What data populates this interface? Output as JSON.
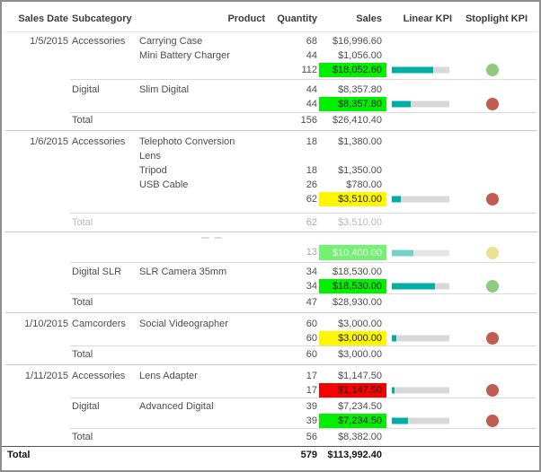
{
  "header": {
    "columns": [
      {
        "key": "date",
        "label": "Sales Date"
      },
      {
        "key": "subcategory",
        "label": "Subcategory"
      },
      {
        "key": "product",
        "label": "Product"
      },
      {
        "key": "quantity",
        "label": "Quantity"
      },
      {
        "key": "sales",
        "label": "Sales"
      },
      {
        "key": "linear_kpi",
        "label": "Linear KPI"
      },
      {
        "key": "stoplight_kpi",
        "label": "Stoplight KPI"
      }
    ]
  },
  "colors": {
    "cell_green": "#00f000",
    "cell_yellow": "#fff600",
    "cell_red": "#f80000",
    "cell_green_faded": "#72f172",
    "bar_fill": "#00aea4",
    "bar_fill_faded": "#74d0ca",
    "bar_track": "#d8d8d8",
    "bar_track_faded": "#e4e4e4",
    "dot_green": "#8fcb7d",
    "dot_red": "#c25b51",
    "dot_yellow": "#e8e093"
  },
  "rows": [
    {
      "type": "detail",
      "date": "1/5/2015",
      "subcategory": "Accessories",
      "product": "Carrying Case",
      "quantity": "68",
      "sales": "$16,996.60"
    },
    {
      "type": "detail",
      "product": "Mini Battery Charger",
      "quantity": "44",
      "sales": "$1,056.00"
    },
    {
      "type": "subtotal",
      "quantity": "112",
      "sales": "$18,052.60",
      "kpi": "green",
      "bar_pct": 72,
      "dot": "green"
    },
    {
      "type": "detail",
      "subcategory": "Digital",
      "product": "Slim Digital",
      "quantity": "44",
      "sales": "$8,357.80"
    },
    {
      "type": "subtotal",
      "quantity": "44",
      "sales": "$8,357.80",
      "kpi": "green",
      "bar_pct": 33,
      "dot": "red"
    },
    {
      "type": "total",
      "label": "Total",
      "quantity": "156",
      "sales": "$26,410.40"
    },
    {
      "type": "detail",
      "date": "1/6/2015",
      "subcategory": "Accessories",
      "product": "Telephoto Conversion Lens",
      "quantity": "18",
      "sales": "$1,380.00"
    },
    {
      "type": "detail",
      "product": "Tripod",
      "quantity": "18",
      "sales": "$1,350.00"
    },
    {
      "type": "detail",
      "product": "USB Cable",
      "quantity": "26",
      "sales": "$780.00"
    },
    {
      "type": "subtotal",
      "quantity": "62",
      "sales": "$3,510.00",
      "kpi": "yellow",
      "bar_pct": 15,
      "dot": "red"
    },
    {
      "type": "total",
      "label": "Total",
      "quantity": "62",
      "sales": "$3,510.00",
      "faded": true
    },
    {
      "type": "subtotal",
      "quantity": "13",
      "sales": "$10,400.00",
      "kpi": "green",
      "bar_pct": 38,
      "dot": "yellow",
      "faded": true
    },
    {
      "type": "detail",
      "subcategory": "Digital SLR",
      "product": "SLR Camera 35mm",
      "quantity": "34",
      "sales": "$18,530.00"
    },
    {
      "type": "subtotal",
      "quantity": "34",
      "sales": "$18,530.00",
      "kpi": "green",
      "bar_pct": 75,
      "dot": "green"
    },
    {
      "type": "total",
      "label": "Total",
      "quantity": "47",
      "sales": "$28,930.00"
    },
    {
      "type": "detail",
      "date": "1/10/2015",
      "subcategory": "Camcorders",
      "product": "Social Videographer",
      "quantity": "60",
      "sales": "$3,000.00"
    },
    {
      "type": "subtotal",
      "quantity": "60",
      "sales": "$3,000.00",
      "kpi": "yellow",
      "bar_pct": 8,
      "dot": "red"
    },
    {
      "type": "total",
      "label": "Total",
      "quantity": "60",
      "sales": "$3,000.00"
    },
    {
      "type": "detail",
      "date": "1/11/2015",
      "subcategory": "Accessories",
      "product": "Lens Adapter",
      "quantity": "17",
      "sales": "$1,147.50"
    },
    {
      "type": "subtotal",
      "quantity": "17",
      "sales": "$1,147.50",
      "kpi": "red",
      "bar_pct": 4,
      "dot": "red"
    },
    {
      "type": "detail",
      "subcategory": "Digital",
      "product": "Advanced Digital",
      "quantity": "39",
      "sales": "$7,234.50"
    },
    {
      "type": "subtotal",
      "quantity": "39",
      "sales": "$7,234.50",
      "kpi": "green",
      "bar_pct": 28,
      "dot": "red"
    },
    {
      "type": "total",
      "label": "Total",
      "quantity": "56",
      "sales": "$8,382.00"
    }
  ],
  "grand_total": {
    "label": "Total",
    "quantity": "579",
    "sales": "$113,992.40"
  }
}
